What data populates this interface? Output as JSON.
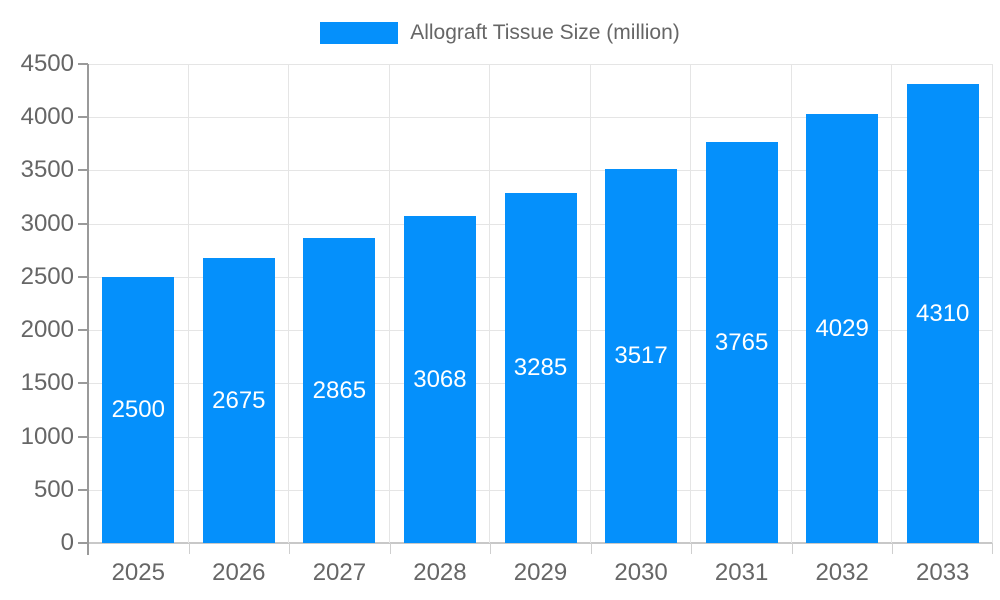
{
  "legend": {
    "label": "Allograft Tissue Size (million)"
  },
  "colors": {
    "bar": "#0590fb",
    "bar_label_text": "#ffffff",
    "axis_text": "#666666",
    "legend_text": "#666666",
    "grid": "#e5e5e5",
    "zero_line": "#c8c8c8",
    "axis_line": "#9a9a9a",
    "x_tick": "#cfcfcf"
  },
  "chart_data": {
    "type": "bar",
    "title": "Allograft Tissue Size (million)",
    "categories": [
      "2025",
      "2026",
      "2027",
      "2028",
      "2029",
      "2030",
      "2031",
      "2032",
      "2033"
    ],
    "values": [
      2500,
      2675,
      2865,
      3068,
      3285,
      3517,
      3765,
      4029,
      4310
    ],
    "series_name": "Allograft Tissue Size (million)",
    "xlabel": "",
    "ylabel": "",
    "ylim": [
      0,
      4500
    ],
    "ytick_step": 500,
    "ytick_labels": [
      "0",
      "500",
      "1000",
      "1500",
      "2000",
      "2500",
      "3000",
      "3500",
      "4000",
      "4500"
    ],
    "grid": true,
    "legend_position": "top",
    "bar_labels_inside": true
  }
}
